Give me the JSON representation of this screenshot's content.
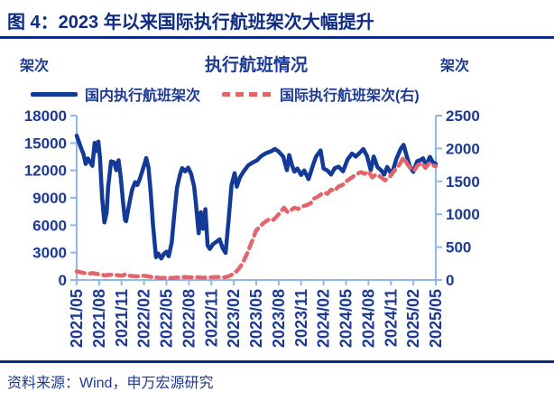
{
  "header": {
    "title": "图 4：2023 年以来国际执行航班架次大幅提升"
  },
  "chart": {
    "title": "执行航班情况",
    "left_unit": "架次",
    "right_unit": "架次",
    "legend": [
      {
        "label": "国内执行航班架次",
        "style": "solid",
        "color": "#123a96"
      },
      {
        "label": "国际执行航班架次(右)",
        "style": "dashed",
        "color": "#e2656b"
      }
    ]
  },
  "footer": {
    "source": "资料来源：Wind，申万宏源研究"
  },
  "colors": {
    "header_navy": "#0d2b85",
    "text_navy": "#1c3a94",
    "line_navy": "#123a96",
    "line_red": "#e2656b",
    "axis_blue": "#8fb8e8"
  },
  "chart_data": {
    "type": "line",
    "title": "执行航班情况",
    "x_range": [
      0,
      48
    ],
    "x_tick_step_months": 3,
    "x_tick_labels": [
      "2021/05",
      "2021/08",
      "2021/11",
      "2022/02",
      "2022/05",
      "2022/08",
      "2022/11",
      "2023/02",
      "2023/05",
      "2023/08",
      "2023/11",
      "2024/02",
      "2024/05",
      "2024/08",
      "2024/11",
      "2025/02",
      "2025/05"
    ],
    "left_axis": {
      "label": "架次",
      "min": 0,
      "max": 18000,
      "step": 3000
    },
    "right_axis": {
      "label": "架次",
      "min": 0,
      "max": 2500,
      "step": 500
    },
    "legend_position": "top",
    "grid": false,
    "series": [
      {
        "name": "国内执行航班架次",
        "axis": "left",
        "style": "solid",
        "color": "#123a96",
        "points": [
          [
            0,
            15800
          ],
          [
            0.3,
            15100
          ],
          [
            0.6,
            14400
          ],
          [
            0.9,
            13800
          ],
          [
            1.2,
            12700
          ],
          [
            1.5,
            13300
          ],
          [
            1.8,
            12900
          ],
          [
            2.1,
            12500
          ],
          [
            2.4,
            15000
          ],
          [
            2.6,
            14100
          ],
          [
            2.9,
            15150
          ],
          [
            3.1,
            13500
          ],
          [
            3.4,
            9000
          ],
          [
            3.7,
            6300
          ],
          [
            4.0,
            7400
          ],
          [
            4.2,
            10100
          ],
          [
            4.6,
            13000
          ],
          [
            5.0,
            12900
          ],
          [
            5.3,
            12030
          ],
          [
            5.6,
            13100
          ],
          [
            5.9,
            11200
          ],
          [
            6.2,
            8500
          ],
          [
            6.45,
            6600
          ],
          [
            6.6,
            6430
          ],
          [
            6.9,
            7800
          ],
          [
            7.2,
            9060
          ],
          [
            7.4,
            9890
          ],
          [
            7.8,
            10710
          ],
          [
            8.1,
            10400
          ],
          [
            8.4,
            11000
          ],
          [
            8.8,
            12000
          ],
          [
            9.3,
            13350
          ],
          [
            9.6,
            12300
          ],
          [
            9.9,
            9500
          ],
          [
            10.2,
            6000
          ],
          [
            10.6,
            2500
          ],
          [
            10.9,
            2900
          ],
          [
            11.3,
            2350
          ],
          [
            11.7,
            2900
          ],
          [
            12.0,
            3100
          ],
          [
            12.3,
            2600
          ],
          [
            12.7,
            4100
          ],
          [
            13.0,
            6800
          ],
          [
            13.4,
            10060
          ],
          [
            13.8,
            11500
          ],
          [
            14.1,
            12250
          ],
          [
            14.5,
            11900
          ],
          [
            14.9,
            12300
          ],
          [
            15.3,
            11600
          ],
          [
            15.7,
            10200
          ],
          [
            15.9,
            8730
          ],
          [
            16.3,
            5110
          ],
          [
            16.6,
            7420
          ],
          [
            16.9,
            5610
          ],
          [
            17.2,
            7750
          ],
          [
            17.5,
            3790
          ],
          [
            17.8,
            3400
          ],
          [
            18.2,
            3900
          ],
          [
            18.7,
            4200
          ],
          [
            19.1,
            4450
          ],
          [
            19.5,
            3500
          ],
          [
            19.9,
            2970
          ],
          [
            20.3,
            6500
          ],
          [
            20.7,
            10390
          ],
          [
            21.1,
            11700
          ],
          [
            21.4,
            10230
          ],
          [
            21.8,
            11210
          ],
          [
            22.3,
            11870
          ],
          [
            22.9,
            12530
          ],
          [
            23.5,
            12860
          ],
          [
            24.1,
            13100
          ],
          [
            24.6,
            13520
          ],
          [
            25.2,
            13850
          ],
          [
            26.0,
            14100
          ],
          [
            26.5,
            14340
          ],
          [
            27.0,
            14050
          ],
          [
            27.6,
            13500
          ],
          [
            28.1,
            12030
          ],
          [
            28.4,
            13680
          ],
          [
            28.8,
            12500
          ],
          [
            29.1,
            11870
          ],
          [
            29.5,
            12200
          ],
          [
            30.0,
            11500
          ],
          [
            30.4,
            12000
          ],
          [
            31.0,
            11050
          ],
          [
            31.6,
            12600
          ],
          [
            32.0,
            13520
          ],
          [
            32.6,
            14180
          ],
          [
            33.0,
            12200
          ],
          [
            33.5,
            12000
          ],
          [
            34.0,
            11540
          ],
          [
            34.5,
            12250
          ],
          [
            35.0,
            12400
          ],
          [
            35.6,
            11900
          ],
          [
            36.2,
            13190
          ],
          [
            36.8,
            13850
          ],
          [
            37.3,
            13520
          ],
          [
            37.8,
            13900
          ],
          [
            38.3,
            14340
          ],
          [
            38.8,
            13600
          ],
          [
            39.3,
            12030
          ],
          [
            39.7,
            13520
          ],
          [
            40.2,
            12370
          ],
          [
            40.7,
            12000
          ],
          [
            41.1,
            11540
          ],
          [
            41.5,
            12370
          ],
          [
            42.1,
            11540
          ],
          [
            42.7,
            13190
          ],
          [
            43.3,
            14340
          ],
          [
            43.7,
            14800
          ],
          [
            44.1,
            13600
          ],
          [
            44.5,
            12500
          ],
          [
            45.0,
            11840
          ],
          [
            45.5,
            13000
          ],
          [
            46.0,
            13150
          ],
          [
            46.3,
            13320
          ],
          [
            46.7,
            12500
          ],
          [
            47.2,
            13480
          ],
          [
            47.6,
            12900
          ],
          [
            48,
            12700
          ]
        ]
      },
      {
        "name": "国际执行航班架次(右)",
        "axis": "right",
        "style": "dashed",
        "color": "#e2656b",
        "points": [
          [
            0,
            130
          ],
          [
            0.8,
            110
          ],
          [
            1.5,
            95
          ],
          [
            2.2,
            105
          ],
          [
            3,
            85
          ],
          [
            3.8,
            70
          ],
          [
            4.5,
            80
          ],
          [
            5.2,
            75
          ],
          [
            6,
            65
          ],
          [
            6.5,
            85
          ],
          [
            7,
            65
          ],
          [
            8,
            55
          ],
          [
            9,
            65
          ],
          [
            9.8,
            50
          ],
          [
            10.5,
            40
          ],
          [
            11.2,
            30
          ],
          [
            12,
            35
          ],
          [
            12.8,
            30
          ],
          [
            13.6,
            38
          ],
          [
            14.4,
            45
          ],
          [
            15.2,
            40
          ],
          [
            16,
            42
          ],
          [
            16.8,
            35
          ],
          [
            17.6,
            38
          ],
          [
            18.4,
            42
          ],
          [
            19.2,
            45
          ],
          [
            19.8,
            40
          ],
          [
            20.3,
            55
          ],
          [
            20.8,
            85
          ],
          [
            21.2,
            115
          ],
          [
            21.7,
            175
          ],
          [
            22.2,
            260
          ],
          [
            22.7,
            380
          ],
          [
            23.2,
            520
          ],
          [
            23.6,
            640
          ],
          [
            24,
            755
          ],
          [
            24.4,
            800
          ],
          [
            24.9,
            860
          ],
          [
            25.4,
            900
          ],
          [
            25.9,
            935
          ],
          [
            26.3,
            915
          ],
          [
            26.8,
            975
          ],
          [
            27.3,
            1040
          ],
          [
            27.7,
            1099
          ],
          [
            28.2,
            1030
          ],
          [
            28.7,
            1065
          ],
          [
            29.1,
            1099
          ],
          [
            29.6,
            1080
          ],
          [
            30.2,
            1120
          ],
          [
            30.8,
            1140
          ],
          [
            31.3,
            1170
          ],
          [
            31.7,
            1236
          ],
          [
            32.2,
            1265
          ],
          [
            32.7,
            1305
          ],
          [
            33.1,
            1328
          ],
          [
            33.5,
            1310
          ],
          [
            34,
            1374
          ],
          [
            34.4,
            1351
          ],
          [
            35,
            1420
          ],
          [
            35.6,
            1450
          ],
          [
            36.2,
            1515
          ],
          [
            36.8,
            1560
          ],
          [
            37.4,
            1610
          ],
          [
            38,
            1640
          ],
          [
            38.5,
            1615
          ],
          [
            39,
            1650
          ],
          [
            39.5,
            1560
          ],
          [
            40,
            1605
          ],
          [
            40.6,
            1570
          ],
          [
            41.2,
            1515
          ],
          [
            41.8,
            1565
          ],
          [
            42.4,
            1655
          ],
          [
            43,
            1730
          ],
          [
            43.7,
            1860
          ],
          [
            44.2,
            1760
          ],
          [
            44.7,
            1690
          ],
          [
            45.1,
            1665
          ],
          [
            45.6,
            1745
          ],
          [
            46.1,
            1780
          ],
          [
            46.6,
            1705
          ],
          [
            47.1,
            1770
          ],
          [
            47.6,
            1745
          ],
          [
            48,
            1730
          ]
        ]
      }
    ]
  }
}
